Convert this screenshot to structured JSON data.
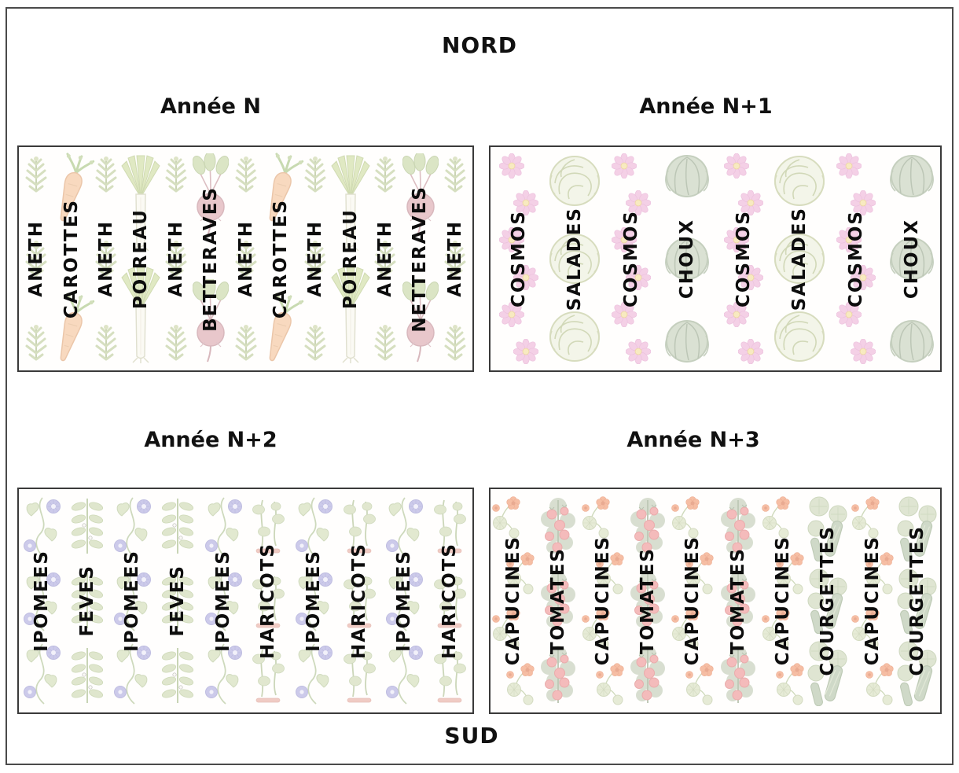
{
  "compass": {
    "north": "NORD",
    "south": "SUD"
  },
  "colors": {
    "background": "#ffffff",
    "frame_border": "#4a4a4a",
    "panel_border": "#3a3a3a",
    "label_text": "#0d0d0d"
  },
  "plant_palette": {
    "aneth": "#b6c690",
    "carotte": "#f4bb8e",
    "poireau": "#c8d894",
    "betterave": "#d79ba4",
    "cosmos": "#ecabd4",
    "salade": "#ebefd9",
    "chou": "#bdcbb1",
    "ipomee": "#a3a0dc",
    "feve": "#c6d4a6",
    "haricot": "#e5a297",
    "capucine": "#ef8a5c",
    "tomate": "#ec8686",
    "courgette": "#a8bc9e"
  },
  "panels": [
    {
      "title": "Année N",
      "columns": [
        {
          "label": "ANETH",
          "plant": "aneth"
        },
        {
          "label": "CAROTTES",
          "plant": "carotte"
        },
        {
          "label": "ANETH",
          "plant": "aneth"
        },
        {
          "label": "POIREAU",
          "plant": "poireau"
        },
        {
          "label": "ANETH",
          "plant": "aneth"
        },
        {
          "label": "BETTERAVES",
          "plant": "betterave"
        },
        {
          "label": "ANETH",
          "plant": "aneth"
        },
        {
          "label": "CAROTTES",
          "plant": "carotte"
        },
        {
          "label": "ANETH",
          "plant": "aneth"
        },
        {
          "label": "POIREAU",
          "plant": "poireau"
        },
        {
          "label": "ANETH",
          "plant": "aneth"
        },
        {
          "label": "NETTERAVES",
          "plant": "betterave"
        },
        {
          "label": "ANETH",
          "plant": "aneth"
        }
      ]
    },
    {
      "title": "Année N+1",
      "columns": [
        {
          "label": "COSMOS",
          "plant": "cosmos"
        },
        {
          "label": "SALADES",
          "plant": "salade"
        },
        {
          "label": "COSMOS",
          "plant": "cosmos"
        },
        {
          "label": "CHOUX",
          "plant": "chou"
        },
        {
          "label": "COSMOS",
          "plant": "cosmos"
        },
        {
          "label": "SALADES",
          "plant": "salade"
        },
        {
          "label": "COSMOS",
          "plant": "cosmos"
        },
        {
          "label": "CHOUX",
          "plant": "chou"
        }
      ]
    },
    {
      "title": "Année N+2",
      "columns": [
        {
          "label": "IPOMEES",
          "plant": "ipomee"
        },
        {
          "label": "FEVES",
          "plant": "feve"
        },
        {
          "label": "IPOMEES",
          "plant": "ipomee"
        },
        {
          "label": "FEVES",
          "plant": "feve"
        },
        {
          "label": "IPOMEES",
          "plant": "ipomee"
        },
        {
          "label": "HARICOTS",
          "plant": "haricot"
        },
        {
          "label": "IPOMEES",
          "plant": "ipomee"
        },
        {
          "label": "HARICOTS",
          "plant": "haricot"
        },
        {
          "label": "IPOMEES",
          "plant": "ipomee"
        },
        {
          "label": "HARICOTS",
          "plant": "haricot"
        }
      ]
    },
    {
      "title": "Année N+3",
      "columns": [
        {
          "label": "CAPUCINES",
          "plant": "capucine"
        },
        {
          "label": "TOMATES",
          "plant": "tomate"
        },
        {
          "label": "CAPUCINES",
          "plant": "capucine"
        },
        {
          "label": "TOMATES",
          "plant": "tomate"
        },
        {
          "label": "CAPUCINES",
          "plant": "capucine"
        },
        {
          "label": "TOMATES",
          "plant": "tomate"
        },
        {
          "label": "CAPUCINES",
          "plant": "capucine"
        },
        {
          "label": "COURGETTES",
          "plant": "courgette"
        },
        {
          "label": "CAPUCINES",
          "plant": "capucine"
        },
        {
          "label": "COURGETTES",
          "plant": "courgette"
        }
      ]
    }
  ]
}
